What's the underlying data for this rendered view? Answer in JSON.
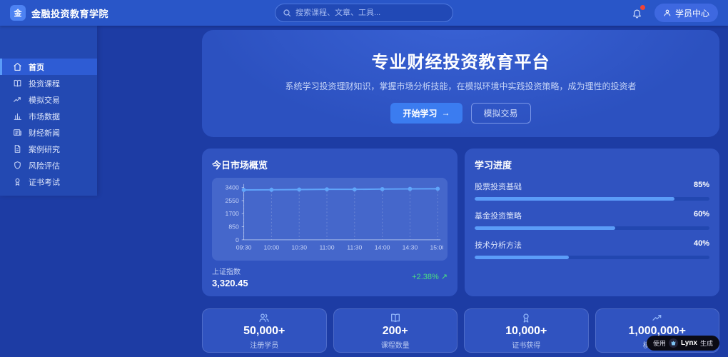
{
  "topbar": {
    "logo_text": "金",
    "title": "金融投资教育学院",
    "search_placeholder": "搜索课程、文章、工具...",
    "member_center": "学员中心"
  },
  "sidebar": {
    "items": [
      {
        "label": "首页",
        "icon": "home-icon",
        "active": true
      },
      {
        "label": "投资课程",
        "icon": "book-icon"
      },
      {
        "label": "模拟交易",
        "icon": "trend-icon"
      },
      {
        "label": "市场数据",
        "icon": "bar-chart-icon"
      },
      {
        "label": "财经新闻",
        "icon": "newspaper-icon"
      },
      {
        "label": "案例研究",
        "icon": "file-icon"
      },
      {
        "label": "风险评估",
        "icon": "shield-icon"
      },
      {
        "label": "证书考试",
        "icon": "award-icon"
      }
    ]
  },
  "hero": {
    "title": "专业财经投资教育平台",
    "subtitle": "系统学习投资理财知识，掌握市场分析技能，在模拟环境中实践投资策略，成为理性的投资者",
    "primary_button": "开始学习",
    "primary_arrow": "→",
    "secondary_button": "模拟交易"
  },
  "market": {
    "title": "今日市场概览",
    "index_label": "上证指数",
    "index_value": "3,320.45",
    "change": "+2.38%",
    "change_icon": "↗"
  },
  "chart_data": {
    "type": "line",
    "title": "今日市场概览",
    "x": [
      "09:30",
      "10:00",
      "10:30",
      "11:00",
      "11:30",
      "14:00",
      "14:30",
      "15:00"
    ],
    "values": [
      3244,
      3252,
      3268,
      3285,
      3280,
      3298,
      3310,
      3320
    ],
    "yticks": [
      0,
      850,
      1700,
      2550,
      3400
    ],
    "ylim": [
      0,
      3400
    ],
    "xlabel": "",
    "ylabel": "",
    "line_color": "#60a5fa",
    "grid": "vertical-dashed",
    "legend": "none"
  },
  "progress": {
    "title": "学习进度",
    "items": [
      {
        "label": "股票投资基础",
        "percent": 85,
        "percent_label": "85%"
      },
      {
        "label": "基金投资策略",
        "percent": 60,
        "percent_label": "60%"
      },
      {
        "label": "技术分析方法",
        "percent": 40,
        "percent_label": "40%"
      }
    ]
  },
  "stats": [
    {
      "value": "50,000+",
      "label": "注册学员",
      "icon": "users-icon"
    },
    {
      "value": "200+",
      "label": "课程数量",
      "icon": "book-icon"
    },
    {
      "value": "10,000+",
      "label": "证书获得",
      "icon": "award-icon"
    },
    {
      "value": "1,000,000+",
      "label": "模拟交易",
      "icon": "trend-icon"
    }
  ],
  "badge": {
    "prefix": "使用",
    "brand": "Lynx",
    "suffix": "生成"
  },
  "colors": {
    "positive": "#4ade80",
    "accent": "#3b7cf0",
    "line": "#60a5fa"
  }
}
